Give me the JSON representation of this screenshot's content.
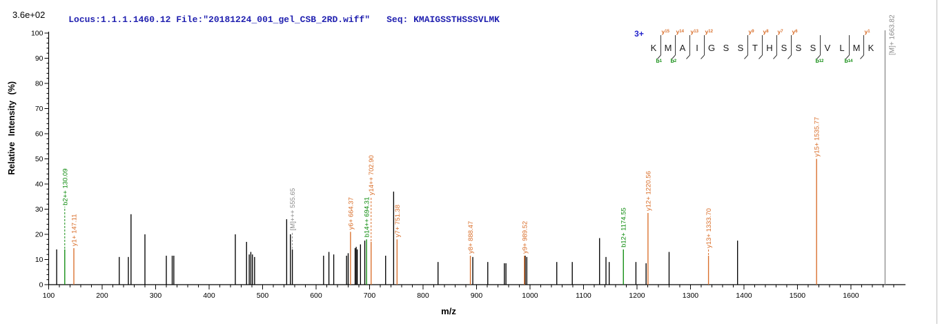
{
  "header": {
    "locus_file": "Locus:1.1.1.1460.12 File:\"20181224_001_gel_CSB_2RD.wiff\"",
    "seq_text": "Seq: KMAIGSSTHSSSVLMK",
    "scale_label": "3.6e+02"
  },
  "colors": {
    "y_ion": "#d96d28",
    "b_ion": "#0b8a0b",
    "precursor_gray": "#8a8a8a",
    "peak_black": "#000000",
    "header_blue": "#2121b0",
    "charge_blue": "#2222cc",
    "ladder_letter": "#1a1a1a",
    "bracket": "#333333"
  },
  "peptide_ladder": {
    "charge_label": "3+",
    "residues": [
      "K",
      "M",
      "A",
      "I",
      "G",
      "S",
      "S",
      "T",
      "H",
      "S",
      "S",
      "S",
      "V",
      "L",
      "M",
      "K"
    ],
    "y_ions": [
      {
        "gap": 1,
        "ion": "y",
        "num": "15"
      },
      {
        "gap": 2,
        "ion": "y",
        "num": "14"
      },
      {
        "gap": 3,
        "ion": "y",
        "num": "13"
      },
      {
        "gap": 4,
        "ion": "y",
        "num": "12"
      },
      {
        "gap": 7,
        "ion": "y",
        "num": "9"
      },
      {
        "gap": 8,
        "ion": "y",
        "num": "8"
      },
      {
        "gap": 9,
        "ion": "y",
        "num": "7"
      },
      {
        "gap": 10,
        "ion": "y",
        "num": "6"
      },
      {
        "gap": 15,
        "ion": "y",
        "num": "1"
      }
    ],
    "b_ions": [
      {
        "gap": 1,
        "ion": "b",
        "num": "1"
      },
      {
        "gap": 2,
        "ion": "b",
        "num": "2"
      },
      {
        "gap": 12,
        "ion": "b",
        "num": "12"
      },
      {
        "gap": 14,
        "ion": "b",
        "num": "14"
      }
    ]
  },
  "chart_data": {
    "type": "bar",
    "subtype": "mass-spectrum-stick-plot",
    "title": "",
    "xlabel": "m/z",
    "ylabel": "Relative Intensity (%)",
    "xlim": [
      100,
      1702
    ],
    "ylim": [
      0,
      100
    ],
    "x_tick_labels": [
      100,
      200,
      300,
      400,
      500,
      600,
      700,
      800,
      900,
      1000,
      1100,
      1200,
      1300,
      1400,
      1500,
      1600
    ],
    "x_minor_step": 20,
    "y_tick_labels": [
      0,
      10,
      20,
      30,
      40,
      50,
      60,
      70,
      80,
      90,
      100
    ],
    "y_minor_step": 2,
    "grid": false,
    "peaks": [
      [
        115,
        14
      ],
      [
        232,
        11
      ],
      [
        249,
        11
      ],
      [
        254,
        28
      ],
      [
        280,
        20
      ],
      [
        320,
        11.5
      ],
      [
        331,
        11.5
      ],
      [
        334,
        11.5
      ],
      [
        449,
        20
      ],
      [
        470,
        17
      ],
      [
        475,
        12
      ],
      [
        478,
        13
      ],
      [
        481,
        12
      ],
      [
        485,
        11
      ],
      [
        545,
        26
      ],
      [
        552,
        20
      ],
      [
        614,
        11.5
      ],
      [
        624,
        13
      ],
      [
        633,
        12
      ],
      [
        657,
        11.5
      ],
      [
        660,
        12.5
      ],
      [
        673,
        14.5
      ],
      [
        675,
        15
      ],
      [
        677,
        14
      ],
      [
        683,
        16
      ],
      [
        691,
        17.5
      ],
      [
        730,
        11.5
      ],
      [
        745,
        37
      ],
      [
        828,
        9
      ],
      [
        893,
        11
      ],
      [
        921,
        9
      ],
      [
        952,
        8.5
      ],
      [
        955,
        8.5
      ],
      [
        991,
        11.5
      ],
      [
        994,
        11
      ],
      [
        1050,
        9
      ],
      [
        1079,
        9
      ],
      [
        1130,
        18.5
      ],
      [
        1142,
        11
      ],
      [
        1148,
        9
      ],
      [
        1198,
        9
      ],
      [
        1217,
        8.5
      ],
      [
        1260,
        13
      ],
      [
        1388,
        17.5
      ]
    ],
    "annotated_peaks": [
      {
        "label": "b2++ 130.09",
        "mz": 130.09,
        "intensity": 14,
        "ion": "b",
        "leader_to": 31
      },
      {
        "label": "y1+ 147.11",
        "mz": 147.11,
        "intensity": 14.5,
        "ion": "y"
      },
      {
        "label": "[M]+++ 555.65",
        "mz": 555.65,
        "intensity": 14,
        "ion": "precursor",
        "leader_to": 21
      },
      {
        "label": "y6+ 664.37",
        "mz": 664.37,
        "intensity": 21,
        "ion": "y"
      },
      {
        "label": "b14++ 694.31",
        "mz": 694.31,
        "intensity": 18,
        "ion": "b"
      },
      {
        "label": "y14++ 702.90",
        "mz": 702.9,
        "intensity": 17,
        "ion": "y",
        "leader_to": 35
      },
      {
        "label": "y7+ 751.38",
        "mz": 751.38,
        "intensity": 18,
        "ion": "y"
      },
      {
        "label": "y8+ 888.47",
        "mz": 888.47,
        "intensity": 11.5,
        "ion": "y"
      },
      {
        "label": "y9+ 989.52",
        "mz": 989.52,
        "intensity": 11.5,
        "ion": "y"
      },
      {
        "label": "b12+ 1174.55",
        "mz": 1174.55,
        "intensity": 14,
        "ion": "b"
      },
      {
        "label": "y12+ 1220.56",
        "mz": 1220.56,
        "intensity": 28.5,
        "ion": "y"
      },
      {
        "label": "y13+ 1333.70",
        "mz": 1333.7,
        "intensity": 11.5,
        "ion": "y",
        "leader_to": 14
      },
      {
        "label": "y15+ 1535.77",
        "mz": 1535.77,
        "intensity": 50,
        "ion": "y"
      }
    ],
    "precursor_line": {
      "label": "[M]+ 1663.82",
      "mz": 1663.82,
      "full_height": true
    }
  }
}
